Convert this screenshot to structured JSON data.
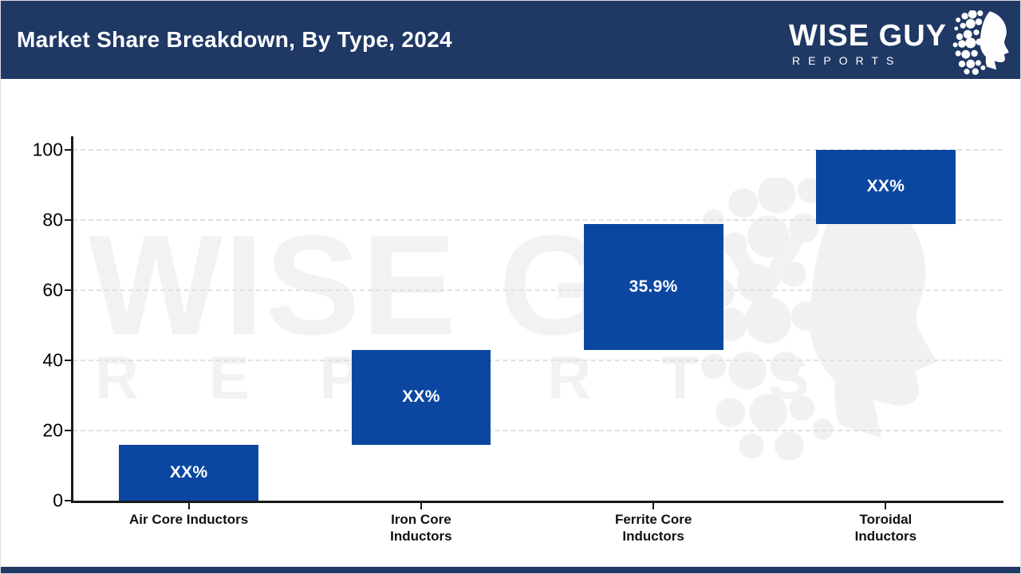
{
  "header": {
    "title": "Market Share Breakdown, By Type, 2024",
    "logo": {
      "line1": "WISE GUY",
      "line2": "REPORTS"
    }
  },
  "watermark": {
    "line1": "WISE GUY",
    "line2": "REPORTS"
  },
  "colors": {
    "header_navy": "#1F3864",
    "bar_blue": "#0B47A1",
    "grid_gray": "#E0E0E0",
    "axis_black": "#1a1a1a",
    "watermark_gray": "#F2F2F2",
    "bar_label_white": "#FFFFFF"
  },
  "icons": {
    "logo_face": "dot-face-profile"
  },
  "chart_data": {
    "type": "bar",
    "subtype": "waterfall",
    "title": "Market Share Breakdown, By Type, 2024",
    "xlabel": "",
    "ylabel": "",
    "ylim": [
      0,
      100
    ],
    "yticks": [
      0,
      20,
      40,
      60,
      80,
      100
    ],
    "grid": "horizontal-dashed",
    "legend": "none",
    "categories": [
      "Air Core Inductors",
      "Iron Core Inductors",
      "Ferrite Core Inductors",
      "Toroidal Inductors"
    ],
    "category_label_lines": [
      [
        "Air Core Inductors"
      ],
      [
        "Iron Core",
        "Inductors"
      ],
      [
        "Ferrite Core",
        "Inductors"
      ],
      [
        "Toroidal Inductors"
      ]
    ],
    "bars": [
      {
        "category": "Air Core Inductors",
        "start": 0,
        "end": 16,
        "label": "XX%"
      },
      {
        "category": "Iron Core Inductors",
        "start": 16,
        "end": 43,
        "label": "XX%"
      },
      {
        "category": "Ferrite Core Inductors",
        "start": 43,
        "end": 78.9,
        "label": "35.9%"
      },
      {
        "category": "Toroidal Inductors",
        "start": 78.9,
        "end": 100,
        "label": "XX%"
      }
    ],
    "bar_width_fraction_of_slot": 0.6
  }
}
